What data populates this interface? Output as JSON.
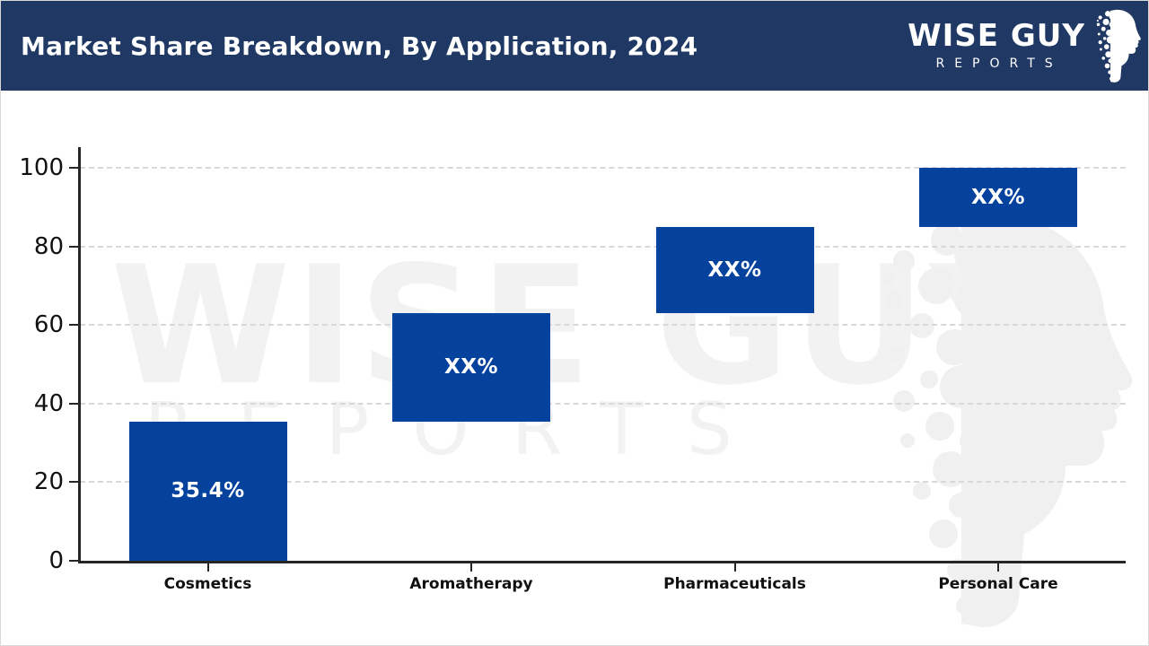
{
  "header": {
    "title": "Market Share Breakdown, By Application, 2024",
    "logo": {
      "name": "WISE GUY",
      "subtitle": "REPORTS"
    }
  },
  "watermark": {
    "name": "WISE GUY",
    "subtitle": "REPORTS"
  },
  "colors": {
    "header_bg": "#1F3864",
    "bar_fill": "#05429E",
    "bar_label_text": "#FFFFFF",
    "gridline": "#D8D8D8",
    "axis": "#262626",
    "watermark": "#F2F2F2"
  },
  "chart_data": {
    "type": "waterfall",
    "title": "Market Share Breakdown, By Application, 2024",
    "categories": [
      "Cosmetics",
      "Aromatherapy",
      "Pharmaceuticals",
      "Personal Care"
    ],
    "segments": [
      {
        "category": "Cosmetics",
        "start": 0,
        "end": 35.4,
        "value": 35.4,
        "label": "35.4%"
      },
      {
        "category": "Aromatherapy",
        "start": 35.4,
        "end": 63,
        "value": 27.6,
        "label": "XX%"
      },
      {
        "category": "Pharmaceuticals",
        "start": 63,
        "end": 85,
        "value": 22,
        "label": "XX%"
      },
      {
        "category": "Personal Care",
        "start": 85,
        "end": 100,
        "value": 15,
        "label": "XX%"
      }
    ],
    "xlabel": "",
    "ylabel": "",
    "ylim": [
      0,
      100
    ],
    "yticks": [
      0,
      20,
      40,
      60,
      80,
      100
    ],
    "grid": "horizontal-dashed",
    "legend": false,
    "bar_color": "#05429E"
  }
}
